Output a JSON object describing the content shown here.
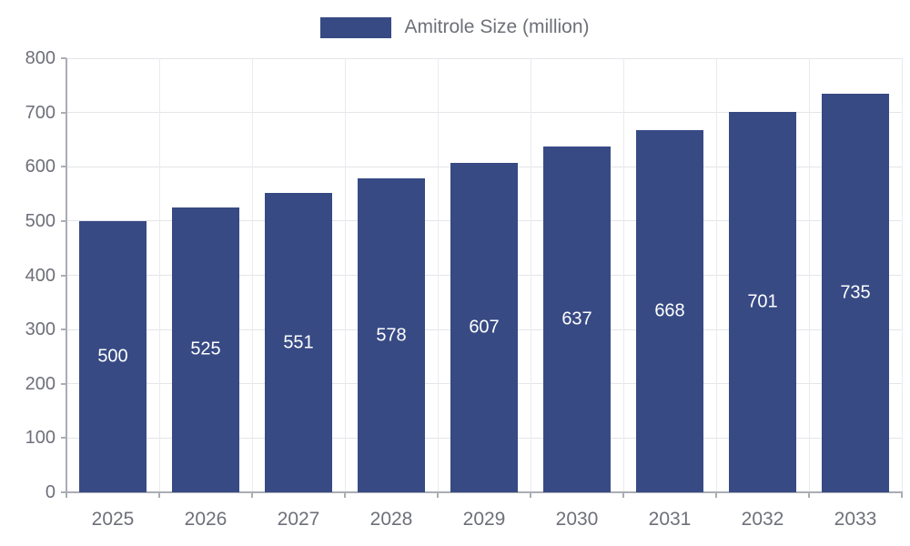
{
  "chart_data": {
    "type": "bar",
    "title": "",
    "legend": "Amitrole Size (million)",
    "categories": [
      "2025",
      "2026",
      "2027",
      "2028",
      "2029",
      "2030",
      "2031",
      "2032",
      "2033"
    ],
    "values": [
      500,
      525,
      551,
      578,
      607,
      637,
      668,
      701,
      735
    ],
    "xlabel": "",
    "ylabel": "",
    "ylim": [
      0,
      800
    ],
    "y_tick_step": 100,
    "y_tick_labels": [
      "0",
      "100",
      "200",
      "300",
      "400",
      "500",
      "600",
      "700",
      "800"
    ],
    "grid": true,
    "legend_position": "top-center",
    "colors": {
      "bar": "#374A84",
      "value_label": "#FFFFFF",
      "axis_line": "#ABADB3",
      "grid_line_h": "#E3E5E9",
      "grid_line_v": "#E9EBF1",
      "tick_label": "#6E7079",
      "legend_text": "#6E7079",
      "background": "#FFFFFF"
    }
  }
}
